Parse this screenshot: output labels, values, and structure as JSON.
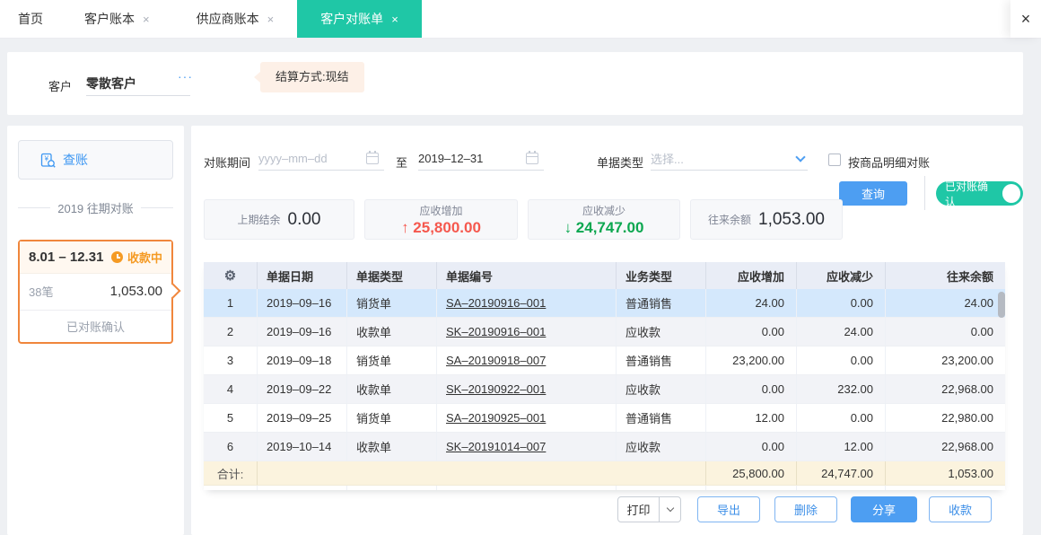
{
  "colors": {
    "accent_teal": "#1fc7a6",
    "accent_blue": "#4d9ef2",
    "danger_red": "#f5584e",
    "success_green": "#0ca750",
    "warn_orange": "#f59a23",
    "card_border_orange": "#f0863c"
  },
  "tab_bar": {
    "tabs": [
      {
        "label": "首页",
        "closable": false,
        "active": false
      },
      {
        "label": "客户账本",
        "closable": true,
        "active": false
      },
      {
        "label": "供应商账本",
        "closable": true,
        "active": false
      },
      {
        "label": "客户对账单",
        "closable": true,
        "active": true
      }
    ],
    "close_glyph": "×",
    "window_close": "×"
  },
  "customer_bar": {
    "label": "客户",
    "value": "零散客户",
    "more_icon": "···",
    "settlement_tag": "结算方式:现结"
  },
  "sidebar": {
    "audit_button": "查账",
    "section_title": "2019 往期对账",
    "period_card": {
      "period": "8.01 – 12.31",
      "status": "收款中",
      "count": "38笔",
      "amount": "1,053.00",
      "footer": "已对账确认"
    }
  },
  "filters": {
    "period_label": "对账期间",
    "date_from_placeholder": "yyyy–mm–dd",
    "range_separator": "至",
    "date_to_value": "2019–12–31",
    "doc_type_label": "单据类型",
    "doc_type_placeholder": "选择...",
    "detail_checkbox_label": "按商品明细对账",
    "query_button": "查询",
    "confirmed_toggle_label": "已对账确认"
  },
  "summary": {
    "cards": [
      {
        "label": "上期结余",
        "value": "0.00",
        "trend": "none"
      },
      {
        "label": "应收增加",
        "value": "25,800.00",
        "trend": "up",
        "arrow": "↑"
      },
      {
        "label": "应收减少",
        "value": "24,747.00",
        "trend": "down",
        "arrow": "↓"
      },
      {
        "label": "往来余额",
        "value": "1,053.00",
        "trend": "none"
      }
    ]
  },
  "table": {
    "settings_icon": "⚙",
    "headers": [
      "单据日期",
      "单据类型",
      "单据编号",
      "业务类型",
      "应收增加",
      "应收减少",
      "往来余额"
    ],
    "rows": [
      {
        "num": "1",
        "date": "2019–09–16",
        "doc_type": "销货单",
        "doc_no": "SA–20190916–001",
        "biz_type": "普通销售",
        "increase": "24.00",
        "decrease": "0.00",
        "balance": "24.00",
        "selected": true
      },
      {
        "num": "2",
        "date": "2019–09–16",
        "doc_type": "收款单",
        "doc_no": "SK–20190916–001",
        "biz_type": "应收款",
        "increase": "0.00",
        "decrease": "24.00",
        "balance": "0.00",
        "selected": false
      },
      {
        "num": "3",
        "date": "2019–09–18",
        "doc_type": "销货单",
        "doc_no": "SA–20190918–007",
        "biz_type": "普通销售",
        "increase": "23,200.00",
        "decrease": "0.00",
        "balance": "23,200.00",
        "selected": false
      },
      {
        "num": "4",
        "date": "2019–09–22",
        "doc_type": "收款单",
        "doc_no": "SK–20190922–001",
        "biz_type": "应收款",
        "increase": "0.00",
        "decrease": "232.00",
        "balance": "22,968.00",
        "selected": false
      },
      {
        "num": "5",
        "date": "2019–09–25",
        "doc_type": "销货单",
        "doc_no": "SA–20190925–001",
        "biz_type": "普通销售",
        "increase": "12.00",
        "decrease": "0.00",
        "balance": "22,980.00",
        "selected": false
      },
      {
        "num": "6",
        "date": "2019–10–14",
        "doc_type": "收款单",
        "doc_no": "SK–20191014–007",
        "biz_type": "应收款",
        "increase": "0.00",
        "decrease": "12.00",
        "balance": "22,968.00",
        "selected": false
      }
    ],
    "total_row": {
      "label": "合计:",
      "increase": "25,800.00",
      "decrease": "24,747.00",
      "balance": "1,053.00"
    }
  },
  "footer": {
    "print_label": "打印",
    "export_label": "导出",
    "delete_label": "删除",
    "share_label": "分享",
    "receive_label": "收款"
  }
}
